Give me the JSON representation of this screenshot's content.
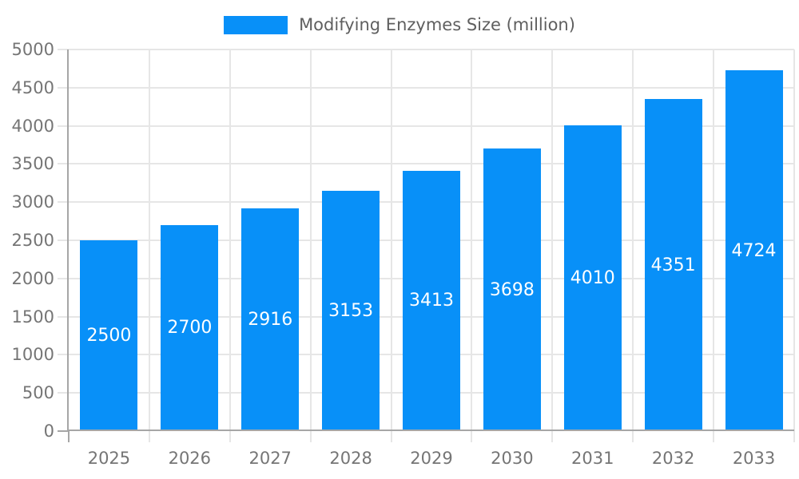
{
  "chart_data": {
    "type": "bar",
    "title": "Modifying Enzymes Size (million)",
    "categories": [
      "2025",
      "2026",
      "2027",
      "2028",
      "2029",
      "2030",
      "2031",
      "2032",
      "2033"
    ],
    "values": [
      2500,
      2700,
      2916,
      3153,
      3413,
      3698,
      4010,
      4351,
      4724
    ],
    "series_name": "Modifying Enzymes Size (million)",
    "xlabel": "",
    "ylabel": "",
    "ylim": [
      0,
      5000
    ],
    "ytick_step": 500,
    "ytick_labels": [
      "0",
      "500",
      "1000",
      "1500",
      "2000",
      "2500",
      "3000",
      "3500",
      "4000",
      "4500",
      "5000"
    ],
    "grid": true,
    "legend_position": "top-center",
    "value_label_position": "inside-center",
    "colors": {
      "bar": "#0890F8",
      "value_label": "#FFFFFF",
      "axis_text": "#757575",
      "legend_text": "#5F5F5F",
      "gridline": "#E6E6E6",
      "axis_line": "#A6A6A6"
    }
  }
}
